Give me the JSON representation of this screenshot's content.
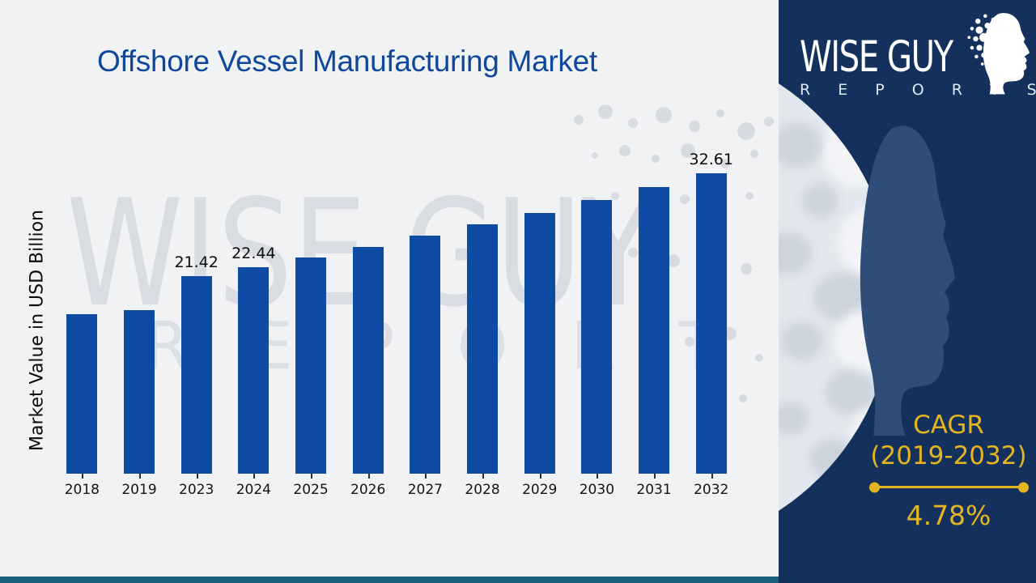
{
  "title": "Offshore Vessel Manufacturing Market",
  "y_axis_label": "Market Value in USD Billion",
  "watermark": {
    "line1": "WISE GUY",
    "line2": "R E P O R T S"
  },
  "brand": {
    "name_line1": "WISE GUY",
    "name_line2": "R E P O R T S",
    "cagr_heading": "CAGR",
    "cagr_range": "(2019-2032)",
    "cagr_value": "4.78%"
  },
  "colors": {
    "background": "#f1f2f3",
    "bar": "#0d4ba5",
    "title": "#0e479c",
    "panel": "#14305c",
    "gold": "#e4b51f",
    "teal_strip": "#17617c"
  },
  "chart_data": {
    "type": "bar",
    "title": "Offshore Vessel Manufacturing Market",
    "xlabel": "",
    "ylabel": "Market Value in USD Billion",
    "unit": "USD Billion",
    "categories": [
      "2018",
      "2019",
      "2023",
      "2024",
      "2025",
      "2026",
      "2027",
      "2028",
      "2029",
      "2030",
      "2031",
      "2032"
    ],
    "values": [
      17.33,
      17.77,
      21.42,
      22.44,
      23.51,
      24.64,
      25.81,
      27.05,
      28.34,
      29.7,
      31.12,
      32.61
    ],
    "data_labels": {
      "2023": "21.42",
      "2024": "22.44",
      "2032": "32.61"
    },
    "ylim": [
      0,
      34
    ],
    "grid": false,
    "legend": "none",
    "cagr_note": "CAGR (2019-2032) 4.78%"
  }
}
